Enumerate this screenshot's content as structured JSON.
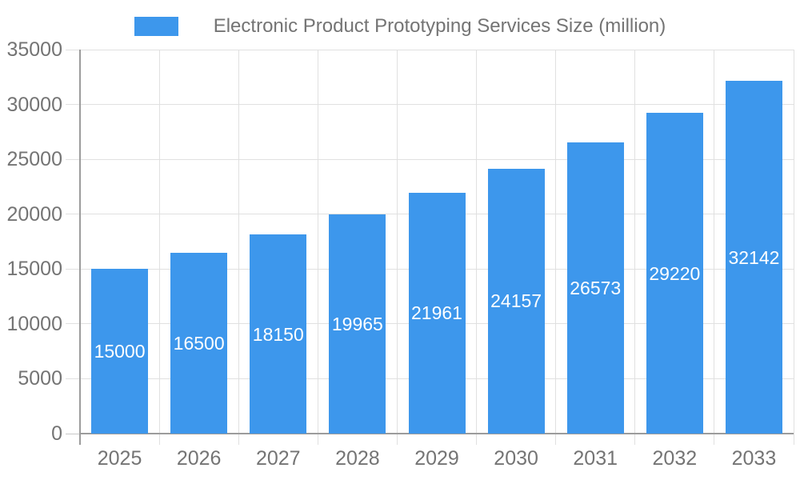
{
  "chart_data": {
    "type": "bar",
    "title": "Electronic Product Prototyping Services Size (million)",
    "categories": [
      "2025",
      "2026",
      "2027",
      "2028",
      "2029",
      "2030",
      "2031",
      "2032",
      "2033"
    ],
    "values": [
      15000,
      16500,
      18150,
      19965,
      21961,
      24157,
      26573,
      29220,
      32142
    ],
    "xlabel": "",
    "ylabel": "",
    "ylim": [
      0,
      35000
    ],
    "yticks": [
      0,
      5000,
      10000,
      15000,
      20000,
      25000,
      30000,
      35000
    ],
    "grid": true,
    "legend_position": "top",
    "value_labels": "inside-center",
    "colors": {
      "bar": "#3D97EC",
      "grid": "#E0E0E0",
      "axis": "#9C9C9C",
      "tick": "#C8C8C8",
      "text": "#747474",
      "value_label": "#FFFFFF",
      "background": "#FFFFFF"
    }
  }
}
